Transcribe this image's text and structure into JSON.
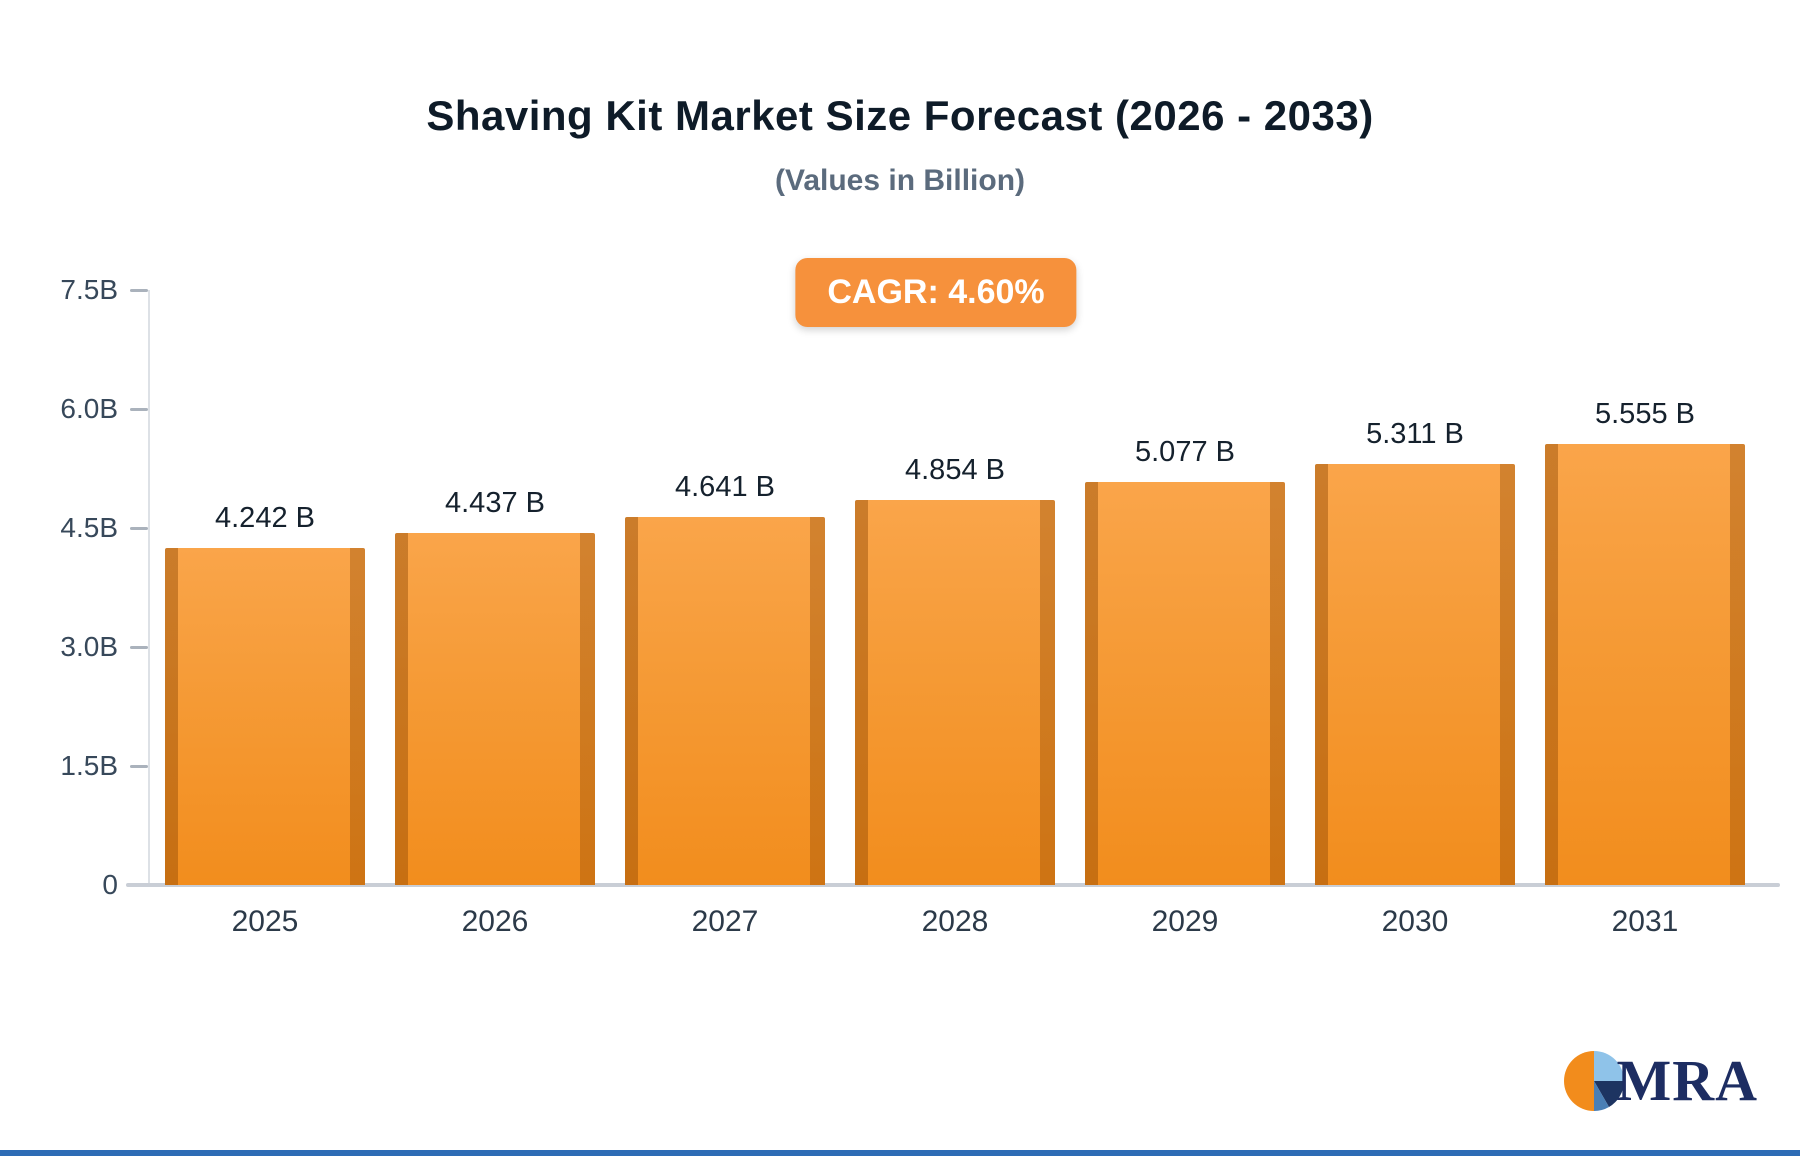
{
  "chart_data": {
    "type": "bar",
    "title": "Shaving Kit Market Size Forecast (2026 - 2033)",
    "subtitle": "(Values in Billion)",
    "badge": "CAGR: 4.60%",
    "categories": [
      "2025",
      "2026",
      "2027",
      "2028",
      "2029",
      "2030",
      "2031"
    ],
    "values": [
      4.242,
      4.437,
      4.641,
      4.854,
      5.077,
      5.311,
      5.555
    ],
    "value_labels": [
      "4.242 B",
      "4.437 B",
      "4.641 B",
      "4.854 B",
      "5.077 B",
      "5.311 B",
      "5.555 B"
    ],
    "ylim": [
      0,
      7.5
    ],
    "yticks": [
      "7.5B",
      "6.0B",
      "4.5B",
      "3.0B",
      "1.5B",
      "0"
    ],
    "ytick_values": [
      7.5,
      6.0,
      4.5,
      3.0,
      1.5,
      0
    ],
    "bar_color": "#f7941e",
    "legend_position": "none",
    "grid": "off"
  },
  "logo": {
    "text": "MRA"
  }
}
